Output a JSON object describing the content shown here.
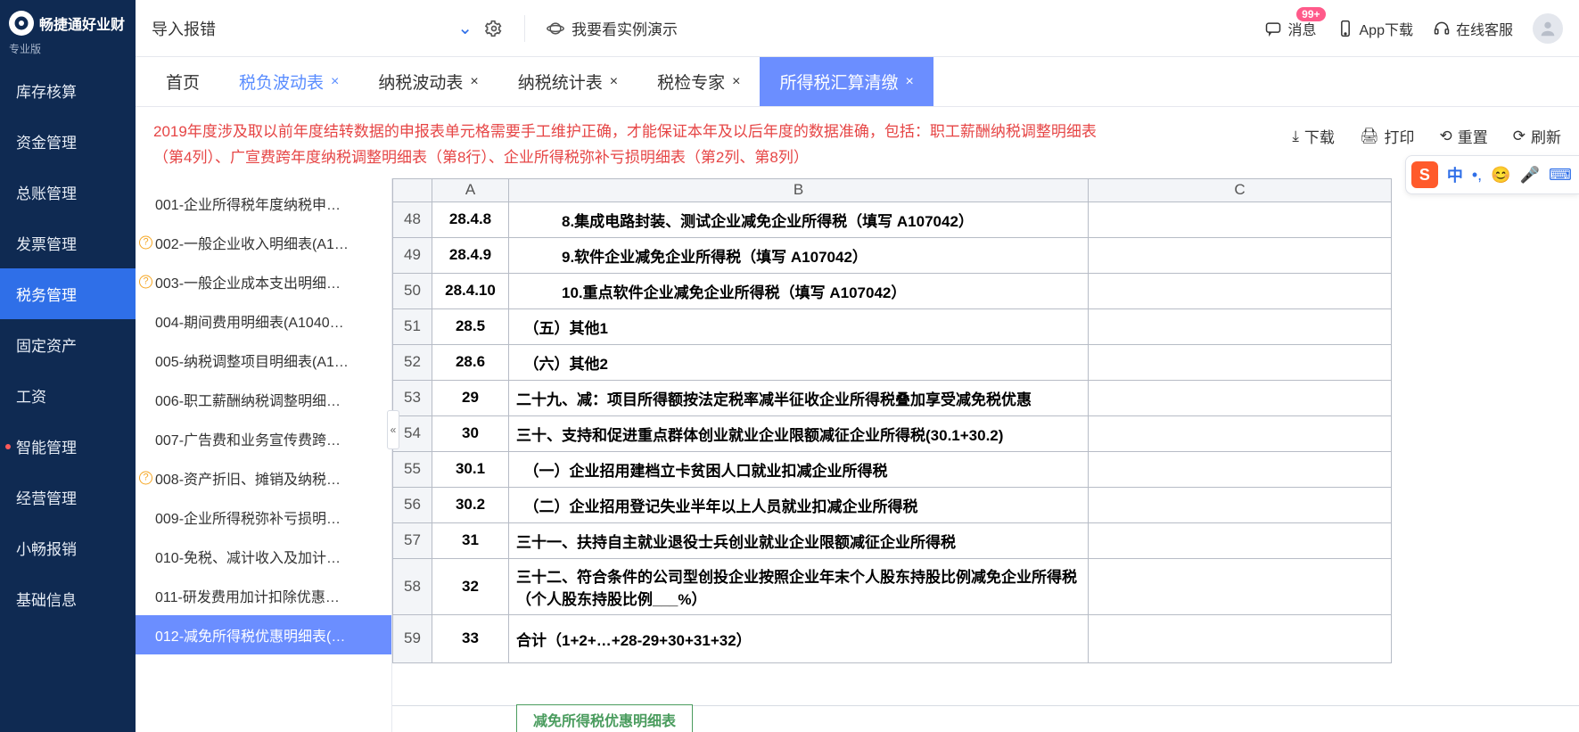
{
  "brand": {
    "name": "畅捷通好业财",
    "edition": "专业版"
  },
  "nav": {
    "items": [
      {
        "label": "库存核算"
      },
      {
        "label": "资金管理"
      },
      {
        "label": "总账管理"
      },
      {
        "label": "发票管理"
      },
      {
        "label": "税务管理",
        "active": true
      },
      {
        "label": "固定资产"
      },
      {
        "label": "工资"
      },
      {
        "label": "智能管理",
        "dot": true
      },
      {
        "label": "经营管理"
      },
      {
        "label": "小畅报销"
      },
      {
        "label": "基础信息"
      }
    ]
  },
  "topbar": {
    "import_label": "导入报错",
    "demo": "我要看实例演示",
    "right": [
      {
        "label": "消息",
        "badge": "99+",
        "icon": "chat"
      },
      {
        "label": "App下载",
        "icon": "phone"
      },
      {
        "label": "在线客服",
        "icon": "headset"
      }
    ]
  },
  "tabs": [
    {
      "label": "首页",
      "closable": false
    },
    {
      "label": "税负波动表",
      "closable": true,
      "link": true
    },
    {
      "label": "纳税波动表",
      "closable": true
    },
    {
      "label": "纳税统计表",
      "closable": true
    },
    {
      "label": "税检专家",
      "closable": true
    },
    {
      "label": "所得税汇算清缴",
      "closable": true,
      "active": true
    }
  ],
  "notice": "2019年度涉及取以前年度结转数据的申报表单元格需要手工维护正确，才能保证本年及以后年度的数据准确，包括：职工薪酬纳税调整明细表（第4列）、广宣费跨年度纳税调整明细表（第8行）、企业所得税弥补亏损明细表（第2列、第8列）",
  "toolbar": {
    "download": "下载",
    "print": "打印",
    "reset": "重置",
    "refresh": "刷新"
  },
  "tree": [
    {
      "label": "001-企业所得税年度纳税申…"
    },
    {
      "label": "002-一般企业收入明细表(A1…",
      "q": true
    },
    {
      "label": "003-一般企业成本支出明细…",
      "q": true
    },
    {
      "label": "004-期间费用明细表(A1040…"
    },
    {
      "label": "005-纳税调整项目明细表(A1…"
    },
    {
      "label": "006-职工薪酬纳税调整明细…"
    },
    {
      "label": "007-广告费和业务宣传费跨…"
    },
    {
      "label": "008-资产折旧、摊销及纳税…",
      "q": true
    },
    {
      "label": "009-企业所得税弥补亏损明…"
    },
    {
      "label": "010-免税、减计收入及加计…"
    },
    {
      "label": "011-研发费用加计扣除优惠…"
    },
    {
      "label": "012-减免所得税优惠明细表(…",
      "sel": true
    }
  ],
  "sheet": {
    "col_headers": [
      "A",
      "B",
      "C"
    ],
    "rows": [
      {
        "n": "48",
        "a": "28.4.8",
        "b": "　　　8.集成电路封装、测试企业减免企业所得税（填写 A107042）"
      },
      {
        "n": "49",
        "a": "28.4.9",
        "b": "　　　9.软件企业减免企业所得税（填写 A107042）"
      },
      {
        "n": "50",
        "a": "28.4.10",
        "b": "　　　10.重点软件企业减免企业所得税（填写 A107042）"
      },
      {
        "n": "51",
        "a": "28.5",
        "b": "　（五）其他1"
      },
      {
        "n": "52",
        "a": "28.6",
        "b": "　（六）其他2"
      },
      {
        "n": "53",
        "a": "29",
        "b": "二十九、减：项目所得额按法定税率减半征收企业所得税叠加享受减免税优惠"
      },
      {
        "n": "54",
        "a": "30",
        "b": "三十、支持和促进重点群体创业就业企业限额减征企业所得税(30.1+30.2)"
      },
      {
        "n": "55",
        "a": "30.1",
        "b": "　（一）企业招用建档立卡贫困人口就业扣减企业所得税"
      },
      {
        "n": "56",
        "a": "30.2",
        "b": "　（二）企业招用登记失业半年以上人员就业扣减企业所得税"
      },
      {
        "n": "57",
        "a": "31",
        "b": "三十一、扶持自主就业退役士兵创业就业企业限额减征企业所得税"
      },
      {
        "n": "58",
        "a": "32",
        "b": "三十二、符合条件的公司型创投企业按照企业年末个人股东持股比例减免企业所得税（个人股东持股比例___%）",
        "tall": true
      },
      {
        "n": "59",
        "a": "33",
        "b": "合计（1+2+…+28-29+30+31+32）",
        "tall": true
      }
    ],
    "bottom_tab": "减免所得税优惠明细表"
  },
  "ime": {
    "s": "S",
    "zh": "中"
  },
  "colors": {
    "sidebar": "#0f2a52",
    "primary": "#2f6fe8",
    "tab_active": "#6b8eff",
    "danger": "#e64545"
  }
}
